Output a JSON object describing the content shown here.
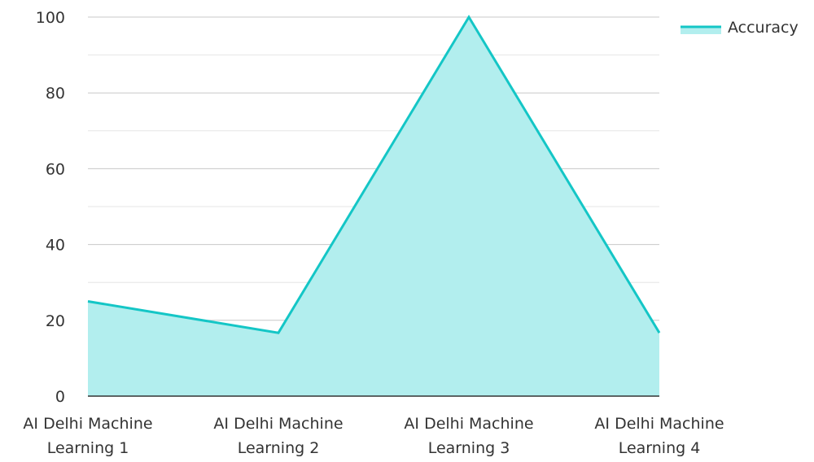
{
  "colors": {
    "series_line": "#14c6c6",
    "series_fill": "#b2eeee",
    "grid_major": "#c8c8c8",
    "grid_minor": "#e6e6e6",
    "axis": "#333333",
    "text": "#333333"
  },
  "chart_data": {
    "type": "area",
    "title": "",
    "xlabel": "",
    "ylabel": "",
    "categories": [
      [
        "AI Delhi Machine",
        "Learning 1"
      ],
      [
        "AI Delhi Machine",
        "Learning 2"
      ],
      [
        "AI Delhi Machine",
        "Learning 3"
      ],
      [
        "AI Delhi Machine",
        "Learning 4"
      ]
    ],
    "series": [
      {
        "name": "Accuracy",
        "values": [
          25,
          16.7,
          100,
          16.7
        ]
      }
    ],
    "ylim": [
      0,
      100
    ],
    "yticks": [
      "0",
      "20",
      "40",
      "60",
      "80",
      "100"
    ],
    "grid": true,
    "legend_position": "top-right"
  }
}
